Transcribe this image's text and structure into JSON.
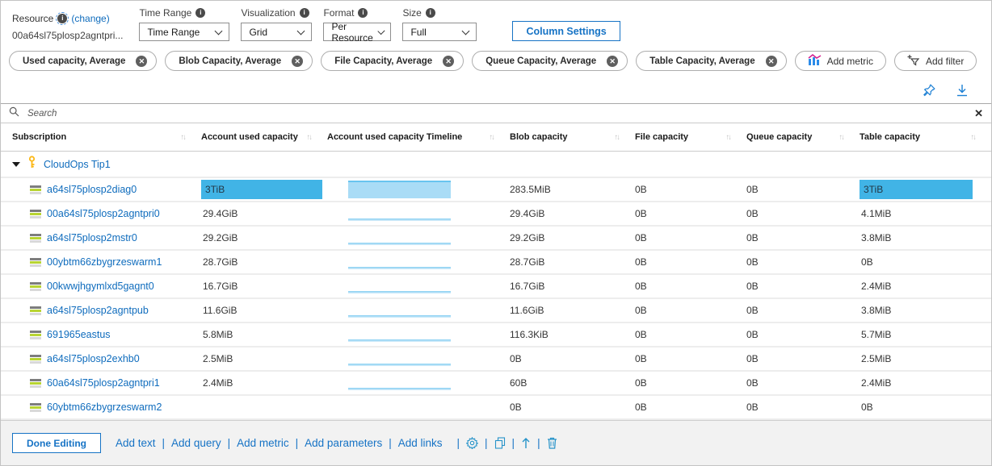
{
  "toolbar": {
    "resource": {
      "label": "Resource",
      "change_link": "(change)",
      "value": "00a64sl75plosp2agntpri..."
    },
    "controls": [
      {
        "label": "Time Range",
        "value": "Time Range"
      },
      {
        "label": "Visualization",
        "value": "Grid"
      },
      {
        "label": "Format",
        "value": "Per Resource"
      },
      {
        "label": "Size",
        "value": "Full"
      }
    ],
    "column_settings_label": "Column Settings"
  },
  "metrics_bar": {
    "chips": [
      "Used capacity, Average",
      "Blob Capacity, Average",
      "File Capacity, Average",
      "Queue Capacity, Average",
      "Table Capacity, Average"
    ],
    "add_metric_label": "Add metric",
    "add_filter_label": "Add filter",
    "chip_close_glyph": "✕"
  },
  "actions": {
    "icons": [
      "pin-icon",
      "download-icon"
    ]
  },
  "search": {
    "placeholder": "Search",
    "clear_glyph": "✕"
  },
  "table": {
    "columns": [
      "Subscription",
      "Account used capacity",
      "Account used capacity Timeline",
      "Blob capacity",
      "File capacity",
      "Queue capacity",
      "Table capacity"
    ],
    "sort_glyph": "↑↓",
    "group": {
      "name": "CloudOps Tip1"
    },
    "rows": [
      {
        "name": "a64sl75plosp2diag0",
        "used": "3TiB",
        "used_bar": true,
        "timeline": "block",
        "blob": "283.5MiB",
        "file": "0B",
        "queue": "0B",
        "table": "3TiB",
        "table_bar": true
      },
      {
        "name": "00a64sl75plosp2agntpri0",
        "used": "29.4GiB",
        "used_bar": false,
        "timeline": "line",
        "blob": "29.4GiB",
        "file": "0B",
        "queue": "0B",
        "table": "4.1MiB",
        "table_bar": false
      },
      {
        "name": "a64sl75plosp2mstr0",
        "used": "29.2GiB",
        "used_bar": false,
        "timeline": "line",
        "blob": "29.2GiB",
        "file": "0B",
        "queue": "0B",
        "table": "3.8MiB",
        "table_bar": false
      },
      {
        "name": "00ybtm66zbygrzeswarm1",
        "used": "28.7GiB",
        "used_bar": false,
        "timeline": "line",
        "blob": "28.7GiB",
        "file": "0B",
        "queue": "0B",
        "table": "0B",
        "table_bar": false
      },
      {
        "name": "00kwwjhgymlxd5gagnt0",
        "used": "16.7GiB",
        "used_bar": false,
        "timeline": "line",
        "blob": "16.7GiB",
        "file": "0B",
        "queue": "0B",
        "table": "2.4MiB",
        "table_bar": false
      },
      {
        "name": "a64sl75plosp2agntpub",
        "used": "11.6GiB",
        "used_bar": false,
        "timeline": "line",
        "blob": "11.6GiB",
        "file": "0B",
        "queue": "0B",
        "table": "3.8MiB",
        "table_bar": false
      },
      {
        "name": "691965eastus",
        "used": "5.8MiB",
        "used_bar": false,
        "timeline": "line",
        "blob": "116.3KiB",
        "file": "0B",
        "queue": "0B",
        "table": "5.7MiB",
        "table_bar": false
      },
      {
        "name": "a64sl75plosp2exhb0",
        "used": "2.5MiB",
        "used_bar": false,
        "timeline": "line",
        "blob": "0B",
        "file": "0B",
        "queue": "0B",
        "table": "2.5MiB",
        "table_bar": false
      },
      {
        "name": "60a64sl75plosp2agntpri1",
        "used": "2.4MiB",
        "used_bar": false,
        "timeline": "line",
        "blob": "60B",
        "file": "0B",
        "queue": "0B",
        "table": "2.4MiB",
        "table_bar": false
      },
      {
        "name": "60ybtm66zbygrzeswarm2",
        "used": "",
        "used_bar": false,
        "timeline": "none",
        "blob": "0B",
        "file": "0B",
        "queue": "0B",
        "table": "0B",
        "table_bar": false
      }
    ]
  },
  "footer": {
    "done_button": "Done Editing",
    "links": [
      "Add text",
      "Add query",
      "Add metric",
      "Add parameters",
      "Add links"
    ],
    "separator": "|",
    "icons": [
      "settings",
      "copy",
      "move-up",
      "delete"
    ]
  },
  "colors": {
    "accent_blue": "#1673c5",
    "bar_blue": "#41b4e6",
    "link_blue": "#0f6cbd",
    "timeline_fill": "#a9dcf6"
  }
}
